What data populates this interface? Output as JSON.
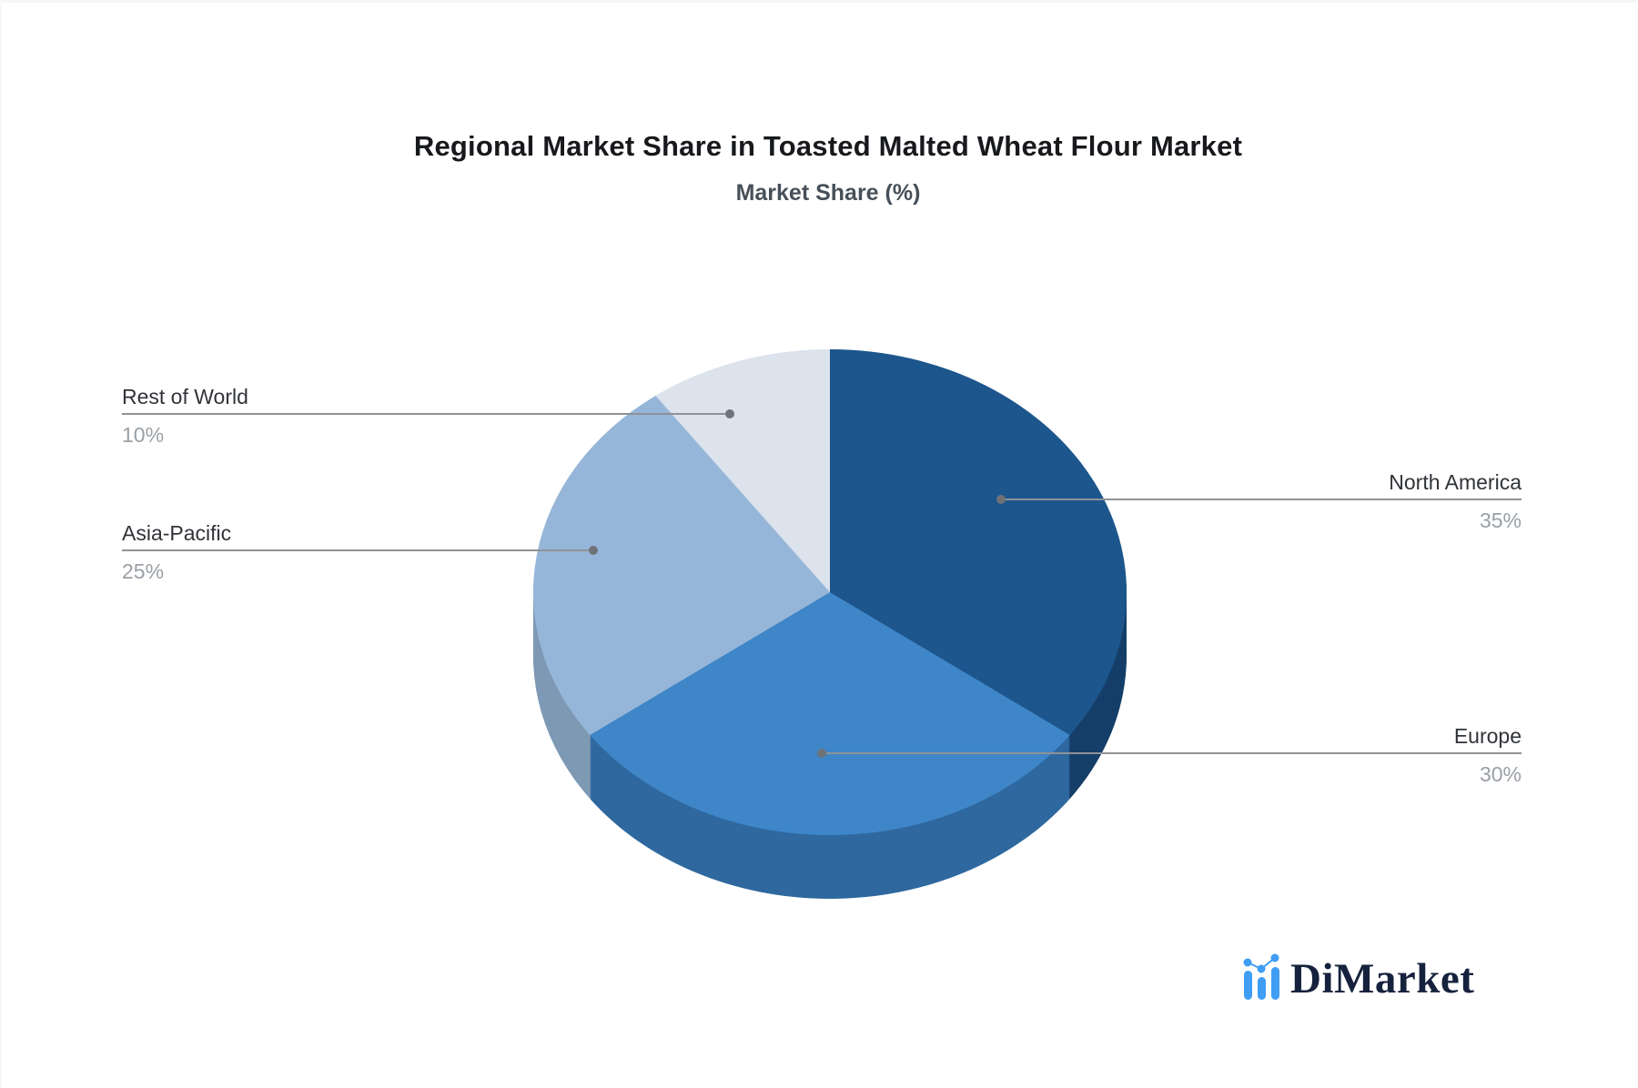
{
  "page": {
    "background": "#ffffff"
  },
  "chart_data": {
    "type": "pie",
    "title": "Regional Market Share in Toasted Malted Wheat Flour Market",
    "subtitle": "Market Share (%)",
    "unit": "%",
    "effect": "3d-extruded",
    "start_angle": "12-oclock",
    "direction": "clockwise",
    "legend_position": "none",
    "label_style": "callout-leader-lines",
    "series": [
      {
        "name": "North America",
        "value": 35,
        "value_label": "35%",
        "color": "#1d568c",
        "side_color": "#153f69"
      },
      {
        "name": "Europe",
        "value": 30,
        "value_label": "30%",
        "color": "#3e86c8",
        "side_color": "#2e689f"
      },
      {
        "name": "Asia-Pacific",
        "value": 25,
        "value_label": "25%",
        "color": "#96b6d9",
        "side_color": "#7e99b4"
      },
      {
        "name": "Rest of World",
        "value": 10,
        "value_label": "10%",
        "color": "#dce3ed",
        "side_color": "#b6c0ce"
      }
    ]
  },
  "branding": {
    "logo_text": "DiMarket",
    "logo_icon": "bar-chart-logo-icon",
    "icon_color": "#3f9df4",
    "text_color": "#16223d"
  },
  "colors": {
    "title": "#17191c",
    "subtitle": "#475059",
    "label_name": "#303338",
    "label_value": "#9aa0a6",
    "leader_line": "#8f9296",
    "leader_dot": "#6f7378"
  }
}
